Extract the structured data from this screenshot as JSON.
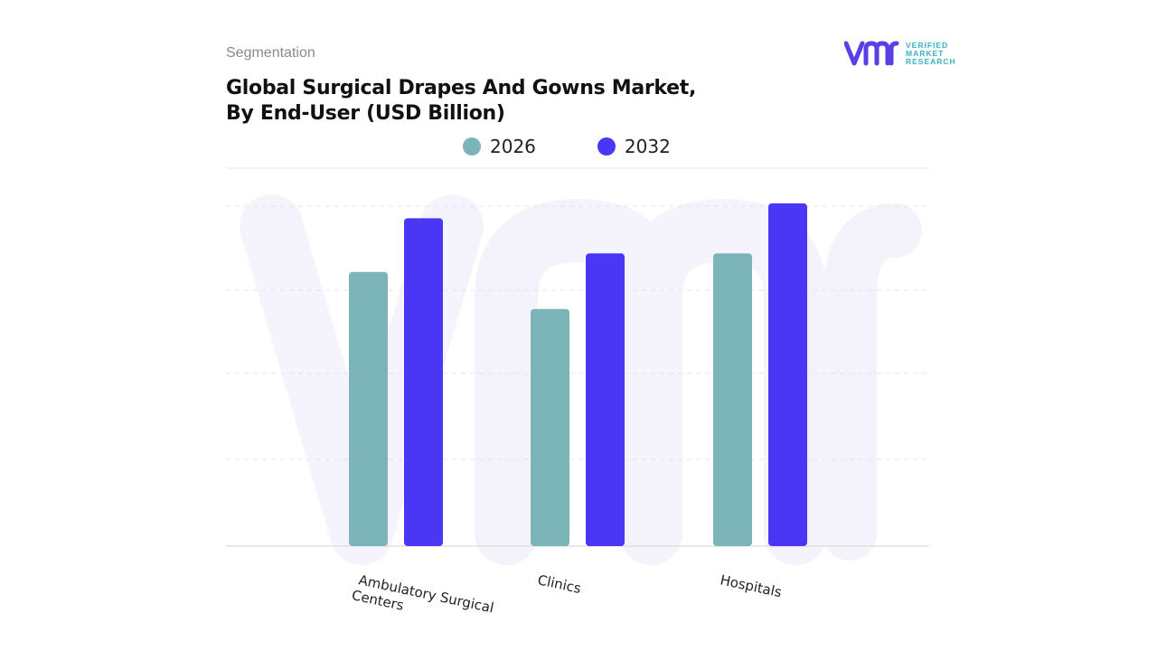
{
  "header": {
    "segment_label": "Segmentation",
    "title_line1": "Global Surgical Drapes And Gowns Market,",
    "title_line2": "By End-User (USD Billion)"
  },
  "logo": {
    "name": "vmr-logo",
    "line1": "VERIFIED",
    "line2": "MARKET",
    "line3": "RESEARCH",
    "colors": {
      "purple": "#5a3fe6",
      "teal": "#35b3c8"
    }
  },
  "chart_data": {
    "type": "bar",
    "categories": [
      "Ambulatory Surgical Centers",
      "Clinics",
      "Hospitals"
    ],
    "series": [
      {
        "name": "2026",
        "values": [
          7.4,
          6.4,
          7.9
        ],
        "color": "#7bb5b9"
      },
      {
        "name": "2032",
        "values": [
          8.85,
          7.9,
          9.25
        ],
        "color": "#4a36f5"
      }
    ],
    "ylim": [
      0,
      10.2
    ],
    "grid": true,
    "legend": "top-center",
    "xlabel": "",
    "ylabel": ""
  }
}
